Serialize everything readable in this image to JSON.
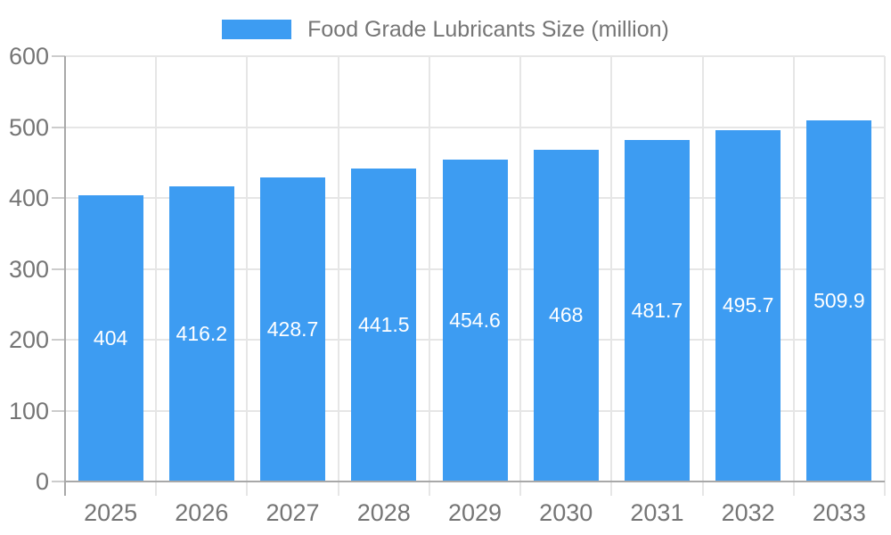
{
  "chart_data": {
    "type": "bar",
    "title": "Food Grade Lubricants Size (million)",
    "legend": {
      "label": "Food Grade Lubricants Size (million)",
      "position": "top"
    },
    "categories": [
      "2025",
      "2026",
      "2027",
      "2028",
      "2029",
      "2030",
      "2031",
      "2032",
      "2033"
    ],
    "series": [
      {
        "name": "Food Grade Lubricants Size (million)",
        "values": [
          404,
          416.2,
          428.7,
          441.5,
          454.6,
          468,
          481.7,
          495.7,
          509.9
        ],
        "value_labels": [
          "404",
          "416.2",
          "428.7",
          "441.5",
          "454.6",
          "468",
          "481.7",
          "495.7",
          "509.9"
        ]
      }
    ],
    "xlabel": "",
    "ylabel": "",
    "ylim": [
      0,
      600
    ],
    "yticks": [
      0,
      100,
      200,
      300,
      400,
      500,
      600
    ],
    "grid": true,
    "value_label_position": "inside-center",
    "colors": {
      "bar": "#3d9cf2",
      "value_label": "#ffffff",
      "axis_text": "#757575",
      "grid_line": "#e6e6e6",
      "tick_mark": "#cccccc",
      "axis_line": "#a8a8a8",
      "background": "#ffffff"
    }
  }
}
